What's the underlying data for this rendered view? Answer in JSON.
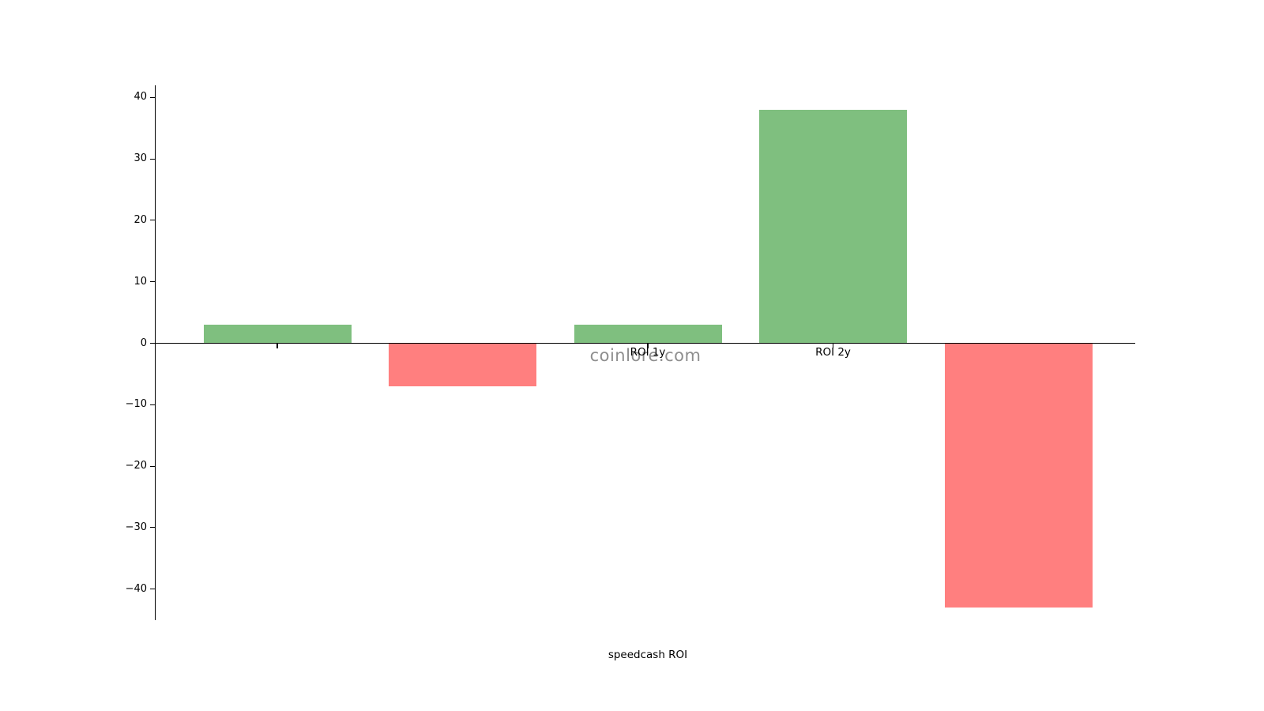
{
  "chart_data": {
    "type": "bar",
    "title": "",
    "categories": [
      "",
      "",
      "ROI 1y",
      "ROI 2y",
      ""
    ],
    "values": [
      3,
      -7,
      3,
      38,
      -43
    ],
    "xlabel": "speedcash ROI",
    "ylabel": "",
    "yticks": [
      40,
      30,
      20,
      10,
      0,
      -10,
      -20,
      -30,
      -40
    ],
    "ylim": [
      -45,
      42
    ],
    "grid": "off",
    "legend": "none",
    "watermark": "coinlore.com",
    "positive_color": "#7fbf7f",
    "negative_color": "#ff7f7f",
    "axis_color": "#000000",
    "tick_label_color": "#000000",
    "watermark_color": "#8e8e8e",
    "background_color": "#ffffff"
  }
}
